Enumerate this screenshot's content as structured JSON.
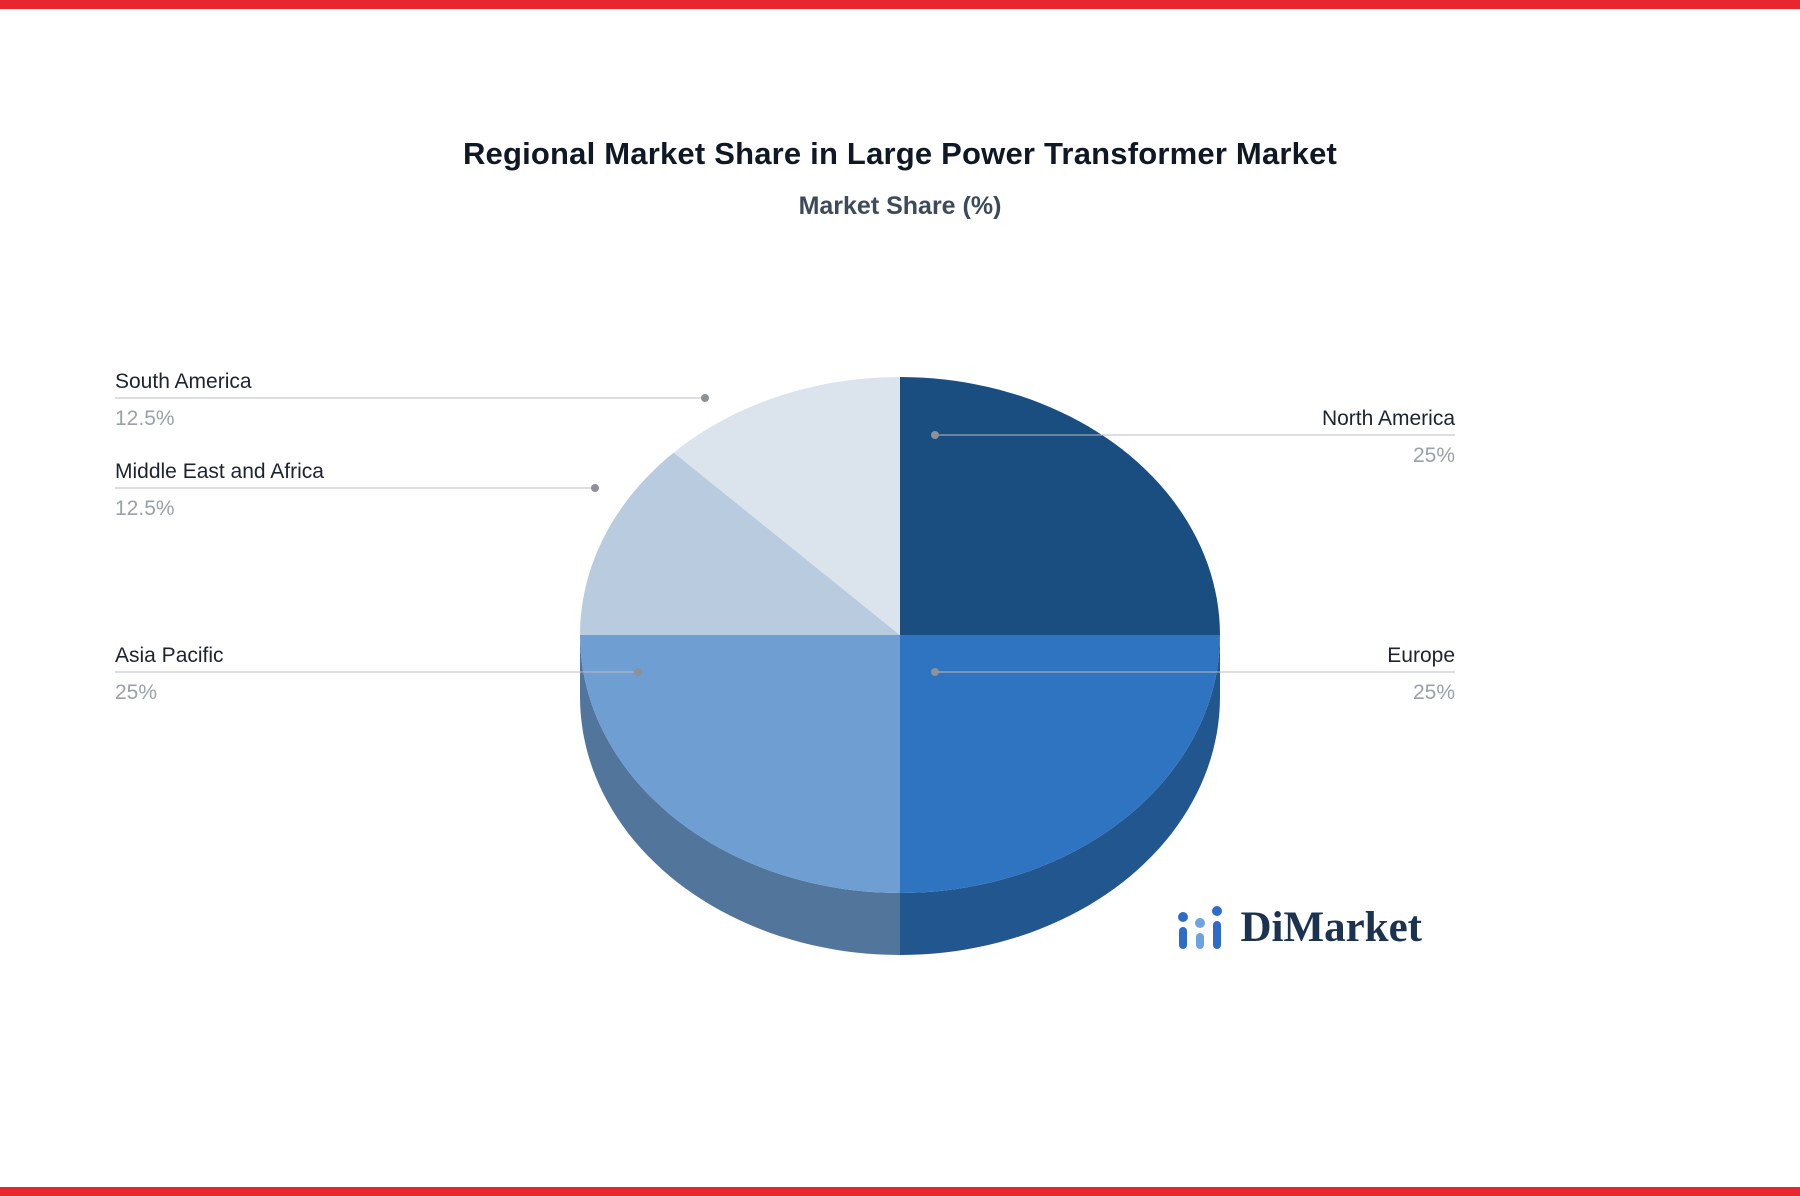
{
  "page": {
    "brand": "DiMarket",
    "accent_red": "#e8262d",
    "brand_navy": "#1b334f",
    "brand_blue": "#2f6cc9",
    "brand_blue_light": "#6fa3e0"
  },
  "chart_data": {
    "type": "pie",
    "title": "Regional Market Share in Large Power Transformer Market",
    "subtitle": "Market Share (%)",
    "unit": "%",
    "style": "3d",
    "start_angle_deg": 0,
    "direction": "clockwise",
    "legend_position": "none",
    "slices": [
      {
        "label": "North America",
        "value": 25,
        "display": "25%",
        "color": "#1a4e80"
      },
      {
        "label": "Europe",
        "value": 25,
        "display": "25%",
        "color": "#2e74c1"
      },
      {
        "label": "Asia Pacific",
        "value": 25,
        "display": "25%",
        "color": "#6f9ed3"
      },
      {
        "label": "Middle East and Africa",
        "value": 12.5,
        "display": "12.5%",
        "color": "#b8cbdf"
      },
      {
        "label": "South America",
        "value": 12.5,
        "display": "12.5%",
        "color": "#dbe3ec"
      }
    ],
    "label_text_color": "#1d2430",
    "value_text_color": "#9aa1a9",
    "leader_line_color": "#b9bcc0",
    "leader_dot_color": "#8d9298"
  }
}
